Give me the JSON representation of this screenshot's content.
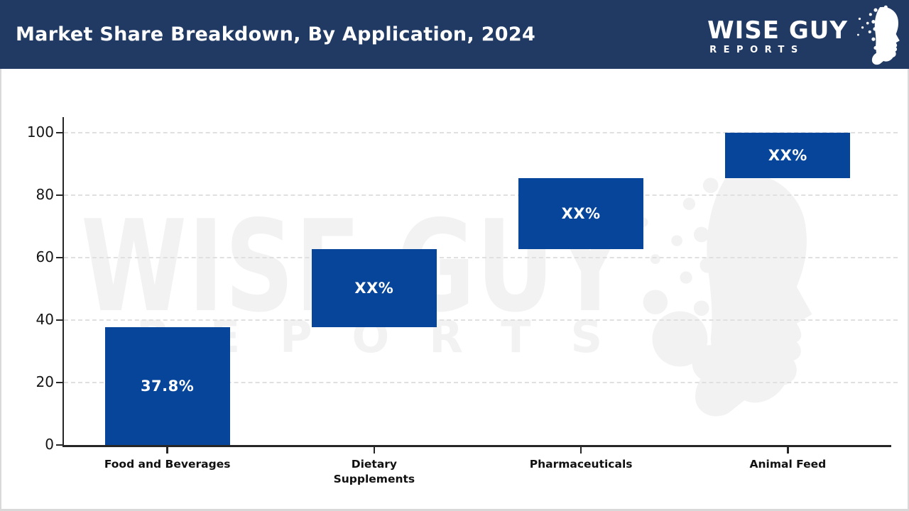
{
  "header": {
    "title": "Market Share Breakdown, By Application, 2024",
    "bg_color": "#213a63",
    "logo": {
      "line1": "WISE GUY",
      "line2": "REPORTS"
    }
  },
  "watermark": {
    "line1": "WISE GUY",
    "line2": "REPORTS"
  },
  "chart_data": {
    "type": "bar",
    "subtype": "waterfall",
    "title": "Market Share Breakdown, By Application, 2024",
    "categories": [
      "Food and Beverages",
      "Dietary\nSupplements",
      "Pharmaceuticals",
      "Animal Feed"
    ],
    "segments": [
      {
        "category": "Food and Beverages",
        "start": 0,
        "end": 37.8,
        "label": "37.8%"
      },
      {
        "category": "Dietary Supplements",
        "start": 37.8,
        "end": 62.7,
        "label": "XX%"
      },
      {
        "category": "Pharmaceuticals",
        "start": 62.7,
        "end": 85.4,
        "label": "XX%"
      },
      {
        "category": "Animal Feed",
        "start": 85.4,
        "end": 100,
        "label": "XX%"
      }
    ],
    "xlabel": "",
    "ylabel": "",
    "ylim": [
      0,
      100
    ],
    "yticks": [
      0,
      20,
      40,
      60,
      80,
      100
    ],
    "grid": "horizontal-dashed",
    "legend": "none",
    "bar_color": "#07459a",
    "bar_label_color": "#ffffff"
  }
}
